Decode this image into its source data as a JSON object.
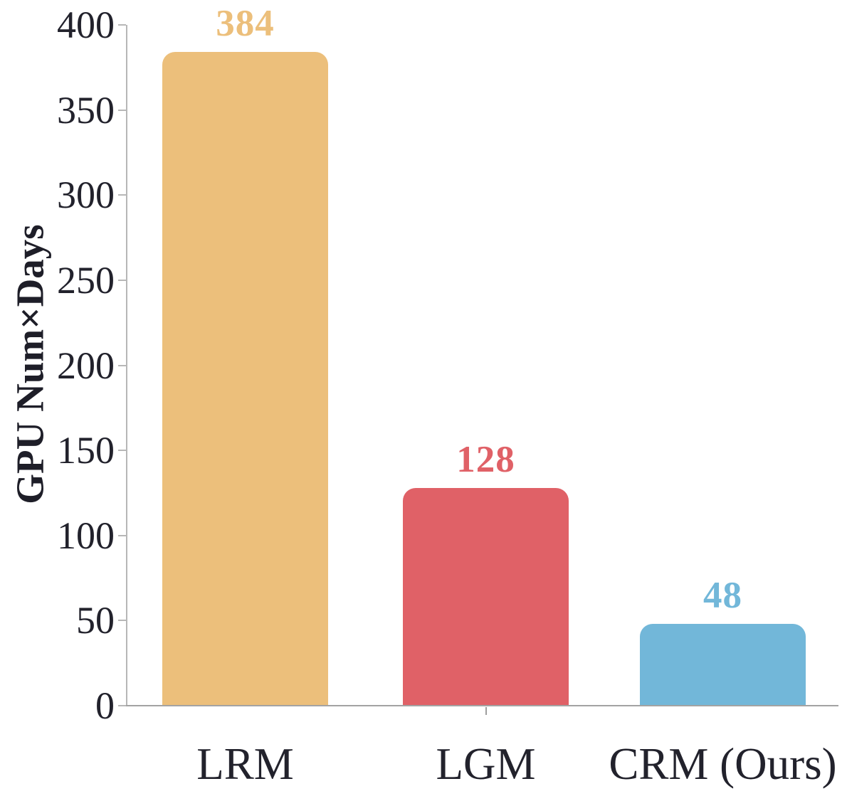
{
  "chart_data": {
    "type": "bar",
    "title": "",
    "xlabel": "",
    "ylabel": "GPU Num×Days",
    "ylim": [
      0,
      400
    ],
    "yticks": [
      400,
      350,
      300,
      250,
      200,
      150,
      100,
      50,
      0
    ],
    "grid": false,
    "legend": null,
    "categories": [
      "LRM",
      "LGM",
      "CRM (Ours)"
    ],
    "values": [
      384,
      128,
      48
    ],
    "bars": [
      {
        "label": "LRM",
        "value": 384,
        "color": "#ecbf7b"
      },
      {
        "label": "LGM",
        "value": 128,
        "color": "#e06167"
      },
      {
        "label": "CRM (Ours)",
        "value": 48,
        "color": "#72b7d9"
      }
    ],
    "colors": {
      "background": "#ffffff",
      "axis_line": "#b7b7b7",
      "baseline": "#a3a3a3",
      "tick_text": "#22222c",
      "axis_title_text": "#1e1e28"
    }
  }
}
